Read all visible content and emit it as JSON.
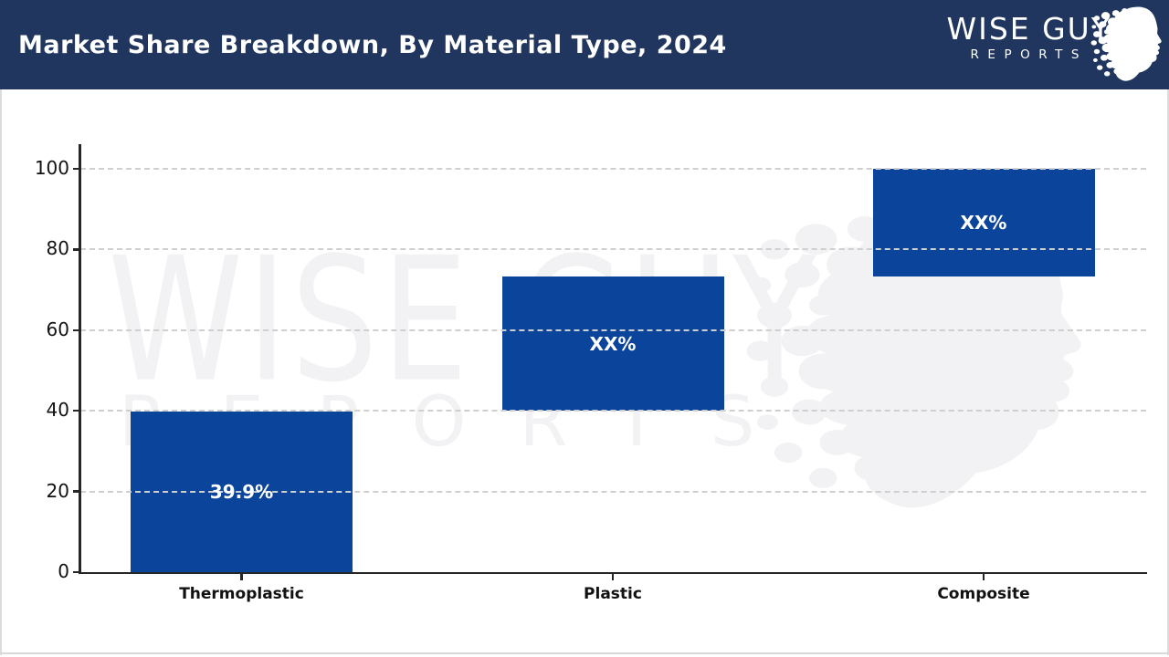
{
  "header": {
    "title": "Market Share Breakdown, By Material Type, 2024",
    "background_color": "#21365F",
    "logo": {
      "line1": "WISE GUY",
      "line2": "REPORTS"
    }
  },
  "watermark": {
    "line1": "WISE GUY",
    "line2": "REPORTS",
    "color": "#F2F2F4"
  },
  "chart_data": {
    "type": "bar",
    "subtype": "stacked-waterfall",
    "title": "Market Share Breakdown, By Material Type, 2024",
    "categories": [
      "Thermoplastic",
      "Plastic",
      "Composite"
    ],
    "segments": [
      {
        "category": "Thermoplastic",
        "start": 0,
        "end": 39.9,
        "label": "39.9%"
      },
      {
        "category": "Plastic",
        "start": 40,
        "end": 73.2,
        "label": "XX%"
      },
      {
        "category": "Composite",
        "start": 73.2,
        "end": 100,
        "label": "XX%"
      }
    ],
    "values_pct": [
      39.9,
      33.2,
      26.8
    ],
    "unit": "%",
    "ylim": [
      0,
      107
    ],
    "yticks": [
      0,
      20,
      40,
      60,
      80,
      100
    ],
    "grid": "horizontal dashed",
    "legend": "none",
    "bar_color": "#0A449B",
    "bar_label_color": "#FFFFFF",
    "axis_color": "#262626",
    "grid_color": "#CFCFCF"
  }
}
